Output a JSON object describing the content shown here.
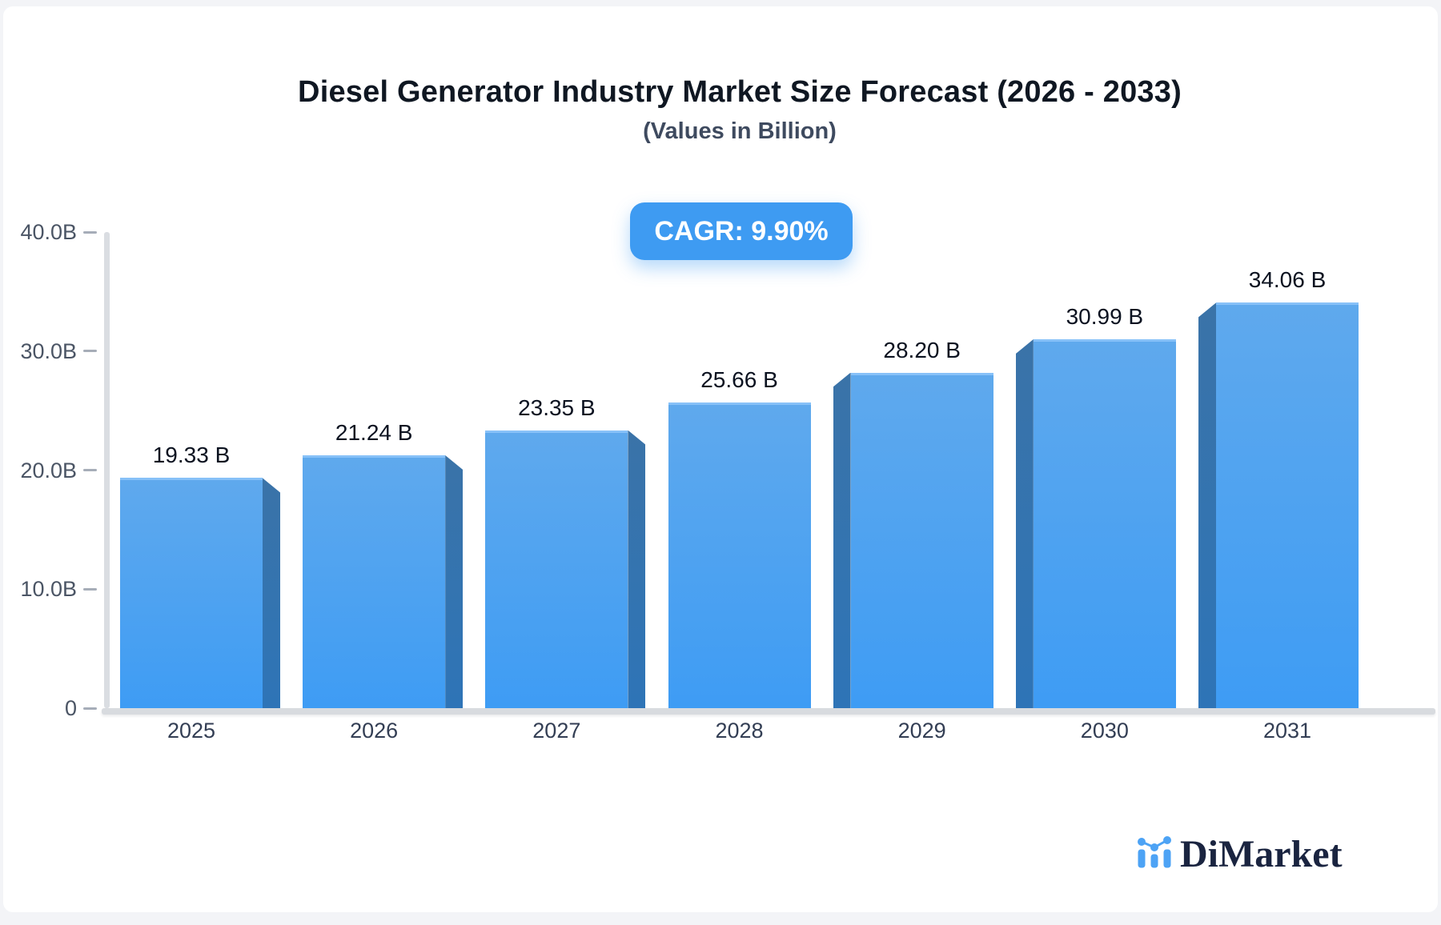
{
  "header": {
    "title": "Diesel Generator Industry Market Size Forecast (2026 - 2033)",
    "subtitle": "(Values in Billion)"
  },
  "badge": {
    "label": "CAGR: 9.90%",
    "background_color": "#3E9BF2",
    "text_color": "#FFFFFF"
  },
  "chart_data": {
    "type": "bar",
    "title": "Diesel Generator Industry Market Size Forecast (2026 - 2033)",
    "subtitle": "(Values in Billion)",
    "categories": [
      "2025",
      "2026",
      "2027",
      "2028",
      "2029",
      "2030",
      "2031"
    ],
    "values": [
      19.33,
      21.24,
      23.35,
      25.66,
      28.2,
      30.99,
      34.06
    ],
    "value_labels": [
      "19.33 B",
      "21.24 B",
      "23.35 B",
      "25.66 B",
      "28.20 B",
      "30.99 B",
      "34.06 B"
    ],
    "ytick_values": [
      0,
      10,
      20,
      30,
      40
    ],
    "ytick_labels": [
      "0",
      "10.0B",
      "20.0B",
      "30.0B",
      "40.0B"
    ],
    "ylim": [
      0,
      40
    ],
    "grid": false,
    "legend": false,
    "bar_style": "3d-extruded",
    "bar_colors": {
      "face_top": "#5FA9ED",
      "face_bottom": "#3E9CF4",
      "side_top": "#3A73A8",
      "side_bottom": "#2E74B7"
    },
    "axis_color": "#DADDE2"
  },
  "footer_logo": {
    "text": "DiMarket",
    "icon": "mini-bar-chart-icon",
    "icon_color": "#4DA3F5",
    "text_color": "#1A2440"
  }
}
